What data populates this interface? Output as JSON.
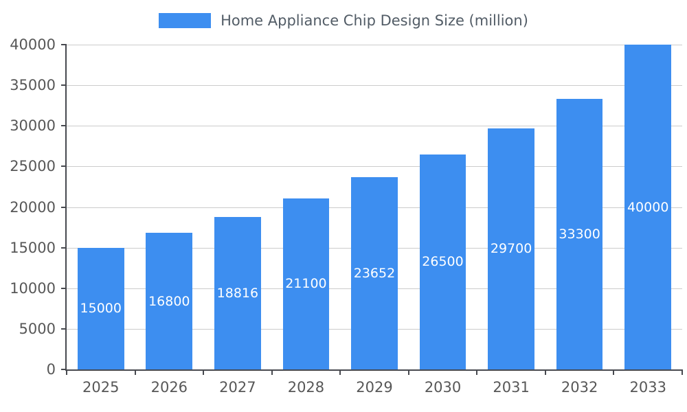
{
  "chart_data": {
    "type": "bar",
    "title": "Home Appliance Chip Design Size (million)",
    "categories": [
      "2025",
      "2026",
      "2027",
      "2028",
      "2029",
      "2030",
      "2031",
      "2032",
      "2033"
    ],
    "values": [
      15000,
      16800,
      18816,
      21100,
      23652,
      26500,
      29700,
      33300,
      40000
    ],
    "xlabel": "",
    "ylabel": "",
    "ylim": [
      0,
      40000
    ],
    "ytick_step": 5000,
    "ytick_labels": [
      "0",
      "5000",
      "10000",
      "15000",
      "20000",
      "25000",
      "30000",
      "35000",
      "40000"
    ],
    "grid": true,
    "legend_position": "top",
    "bar_color": "#3d8ef0",
    "value_label_color": "#ffffff",
    "axis_color": "#47494f",
    "grid_color": "#cccccc",
    "tick_text_color": "#575757"
  }
}
